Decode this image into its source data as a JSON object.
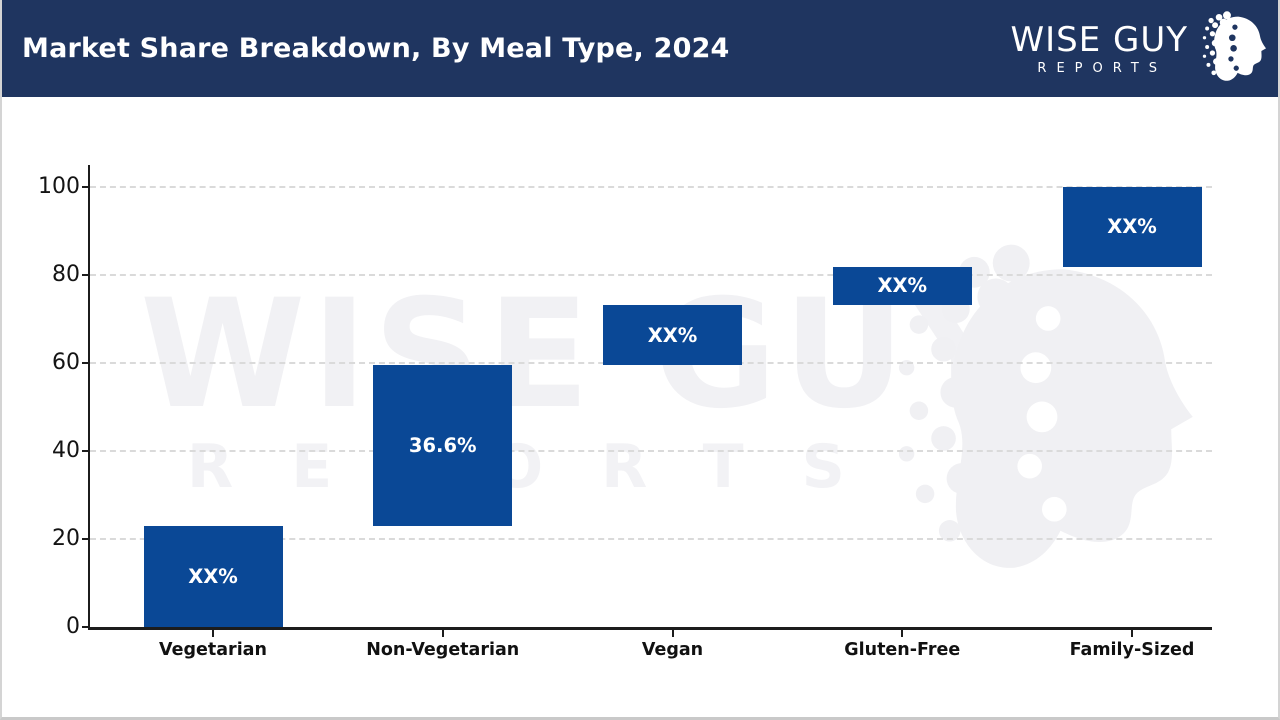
{
  "header": {
    "title": "Market Share Breakdown, By Meal Type, 2024",
    "logo": {
      "line1": "WISE GUY",
      "line2": "REPORTS"
    }
  },
  "watermark": {
    "line1": "WISE GUY",
    "line2": "REPORTS"
  },
  "colors": {
    "header_bg": "#1f3560",
    "bar_blue": "#0a4896",
    "bar_label_white": "#ffffff",
    "gridline_gray": "#dadada",
    "axis_dark": "#1c1c1c",
    "watermark_gray": "#f1f1f4"
  },
  "chart_data": {
    "type": "bar",
    "subtype": "waterfall",
    "title": "Market Share Breakdown, By Meal Type, 2024",
    "categories": [
      "Vegetarian",
      "Non-Vegetarian",
      "Vegan",
      "Gluten-Free",
      "Family-Sized"
    ],
    "segments": [
      {
        "category": "Vegetarian",
        "start": 0,
        "end": 23,
        "value": 23,
        "label": "XX%"
      },
      {
        "category": "Non-Vegetarian",
        "start": 23,
        "end": 59.6,
        "value": 36.6,
        "label": "36.6%"
      },
      {
        "category": "Vegan",
        "start": 59.6,
        "end": 73.1,
        "value": 13.5,
        "label": "XX%"
      },
      {
        "category": "Gluten-Free",
        "start": 73.1,
        "end": 81.9,
        "value": 8.8,
        "label": "XX%"
      },
      {
        "category": "Family-Sized",
        "start": 81.9,
        "end": 100,
        "value": 18.1,
        "label": "XX%"
      }
    ],
    "bar_labels": [
      "XX%",
      "36.6%",
      "XX%",
      "XX%",
      "XX%"
    ],
    "xlabel": "",
    "ylabel": "",
    "yticks": [
      0,
      20,
      40,
      60,
      80,
      100
    ],
    "ylim": [
      0,
      105
    ],
    "grid": "horizontal-dashed",
    "legend": "none"
  }
}
